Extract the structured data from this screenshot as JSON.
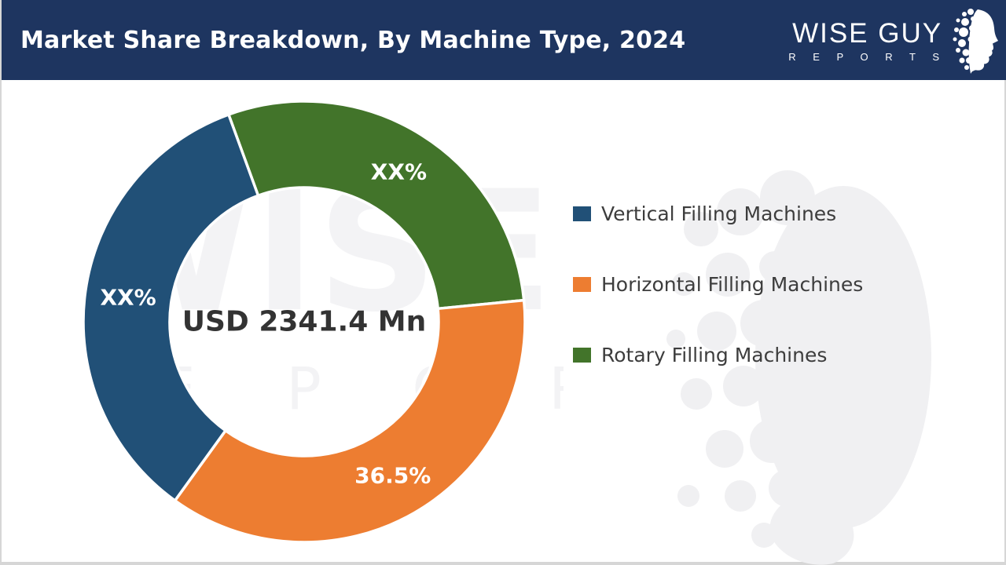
{
  "header": {
    "title": "Market Share Breakdown, By Machine Type, 2024",
    "background_color": "#1E3560",
    "logo": {
      "line1": "WISE GUY",
      "line2": "R E P O R T S"
    }
  },
  "chart_data": {
    "type": "donut",
    "title": "Market Share Breakdown, By Machine Type, 2024",
    "center_label": "USD 2341.4 Mn",
    "start_angle_deg": -20,
    "direction": "clockwise",
    "slices": [
      {
        "name": "Rotary Filling Machines",
        "label": "XX%",
        "value_pct": 29.0,
        "color": "#42742A"
      },
      {
        "name": "Horizontal Filling Machines",
        "label": "36.5%",
        "value_pct": 36.5,
        "color": "#ED7D31"
      },
      {
        "name": "Vertical Filling Machines",
        "label": "XX%",
        "value_pct": 34.5,
        "color": "#215077"
      }
    ],
    "slice_label_color": "#FFFFFF",
    "center_label_color": "#333333",
    "legend_position": "right",
    "gap_color": "#FFFFFF"
  },
  "legend": {
    "items": [
      {
        "label": "Vertical Filling Machines",
        "color": "#215077"
      },
      {
        "label": "Horizontal Filling Machines",
        "color": "#ED7D31"
      },
      {
        "label": "Rotary Filling Machines",
        "color": "#42742A"
      }
    ]
  },
  "watermark": {
    "line1": "WISE GUY",
    "line2": "E P O R"
  }
}
